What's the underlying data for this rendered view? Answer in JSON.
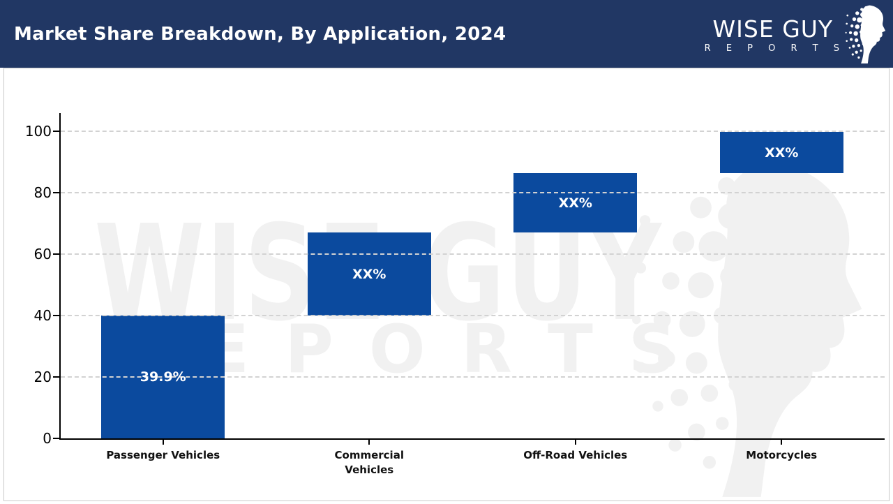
{
  "header": {
    "title": "Market Share Breakdown, By Application, 2024",
    "background": "#213764",
    "logo": {
      "line1": "WISE GUY",
      "line2": "R E P O R T S"
    }
  },
  "watermark": {
    "line1": "WISE GUY",
    "line2": "R E P O R T S"
  },
  "chart_data": {
    "type": "bar",
    "variant": "waterfall",
    "title": "Market Share Breakdown, By Application, 2024",
    "categories": [
      "Passenger Vehicles",
      "Commercial Vehicles",
      "Off-Road Vehicles",
      "Motorcycles"
    ],
    "category_display_lines": [
      [
        "Passenger Vehicles"
      ],
      [
        "Commercial",
        "Vehicles"
      ],
      [
        "Off-Road Vehicles"
      ],
      [
        "Motorcycles"
      ]
    ],
    "series": [
      {
        "name": "Market Share (%)",
        "segments": [
          {
            "category": "Passenger Vehicles",
            "start": 0,
            "end": 39.9,
            "value_label": "39.9%"
          },
          {
            "category": "Commercial Vehicles",
            "start": 39.9,
            "end": 67.0,
            "value_label": "XX%"
          },
          {
            "category": "Off-Road Vehicles",
            "start": 67.0,
            "end": 86.3,
            "value_label": "XX%"
          },
          {
            "category": "Motorcycles",
            "start": 86.3,
            "end": 99.8,
            "value_label": "XX%"
          }
        ]
      }
    ],
    "yticks": [
      0,
      20,
      40,
      60,
      80,
      100
    ],
    "ylim": [
      0,
      100
    ],
    "xlabel": "",
    "ylabel": "",
    "legend": "none",
    "grid": {
      "horizontal": true,
      "style": "dashed",
      "color": "#d2d2d2",
      "above_bars": true
    },
    "bar_color": "#0b4a9e",
    "bar_label_color": "#ffffff",
    "axis_color": "#000000"
  },
  "colors": {
    "header_bg": "#213764",
    "bar_blue": "#0b4a9e",
    "watermark_gray": "#f1f1f1",
    "content_border": "#c9c9c9"
  }
}
